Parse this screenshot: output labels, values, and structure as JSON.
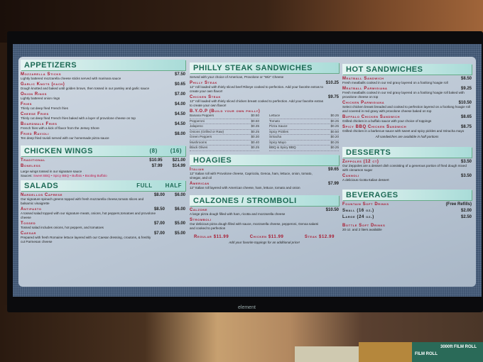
{
  "tv_brand": "element",
  "colors": {
    "header_text": "#1d6a55",
    "item_name": "#a8182e",
    "panel": "#c4cfdb"
  },
  "appetizers": {
    "title": "APPETIZERS",
    "items": [
      {
        "name": "Mozzarella Sticks",
        "desc": "Lightly battered mozzarella cheese sticks served with marinara sauce",
        "price": "$7.50"
      },
      {
        "name": "Garlic Knots (each)",
        "desc": "Dough knotted and baked until golden brown, then tossed in our parsley and garlic sauce",
        "price": "$0.65"
      },
      {
        "name": "Onion Rings",
        "desc": "Lightly battered onion rings",
        "price": "$7.00"
      },
      {
        "name": "Fries",
        "desc": "Thinly cut deep fried French fries",
        "price": "$4.00"
      },
      {
        "name": "Cheese Fries",
        "desc": "Thinly cut deep fried French fries baked with a layer of provolone cheese on top",
        "price": "$4.50"
      },
      {
        "name": "Boardwalk Fries",
        "desc": "French fries with a kick of flavor from the Jersey Shore",
        "price": "$4.50"
      },
      {
        "name": "Fried Ravioli",
        "desc": "Ten deep fried ravioli served with our homemade pizza sauce",
        "price": "$8.00"
      }
    ]
  },
  "wings": {
    "title": "CHICKEN WINGS",
    "cols": [
      "(8)",
      "(16)"
    ],
    "items": [
      {
        "name": "Traditional",
        "prices": [
          "$10.95",
          "$21.00"
        ]
      },
      {
        "name": "Boneless",
        "prices": [
          "$7.99",
          "$14.99"
        ]
      }
    ],
    "desc": "Large wings tossed in our signature sauce",
    "sauces_label": "Sauces:",
    "sauces": [
      "Sweet BBQ",
      "Spicy BBQ",
      "Buffalo",
      "Bootleg Buffalo"
    ]
  },
  "salads": {
    "title": "SALADS",
    "cols": [
      "FULL",
      "HALF"
    ],
    "items": [
      {
        "name": "Nardellos Caprese",
        "desc": "Our signature spinach greens topped with fresh mozzarella cheese,tomato slices and balsamic vinaigrette",
        "prices": [
          "$8.00",
          "$6.00"
        ]
      },
      {
        "name": "Antipasto",
        "desc": "A tossed salad topped with our signature meats, onions, hot peppers,tomatoes and provolone cheese",
        "prices": [
          "$8.50",
          "$6.00"
        ]
      },
      {
        "name": "Tossed",
        "desc": "Tossed salad includes onions, hot peppers, and tomatoes",
        "prices": [
          "$7.00",
          "$5.00"
        ]
      },
      {
        "name": "Caesar",
        "desc": "Prepared with fresh Romaine lettuce layered with our Caesar dressing, croutons, & freshly cut Parmesan cheese",
        "prices": [
          "$7.00",
          "$5.00"
        ]
      }
    ]
  },
  "philly": {
    "title": "PHILLY STEAK SANDWICHES",
    "intro": "Served with your choice of American, Provolone or \"Wiz\" Cheese",
    "items": [
      {
        "name": "Philly Steak",
        "desc": "12\" roll loaded with thinly sliced beef Ribeye cooked to perfection. Add your favorite extras to create your own flavor!",
        "price": "$10.25"
      },
      {
        "name": "Chicken Steak",
        "desc": "12\" roll loaded with thinly sliced chicken breast cooked to perfection. Add your favorite extras to create your own flavor!",
        "price": "$9.75"
      }
    ],
    "byop_title": "B.Y.O.P (Build your own philly)",
    "byop": [
      {
        "name": "Banana Peppers",
        "price": "$0.50"
      },
      {
        "name": "Lettuce",
        "price": "$0.25"
      },
      {
        "name": "Pepperoni",
        "price": "$0.50"
      },
      {
        "name": "Tomato",
        "price": "$0.25"
      },
      {
        "name": "Jalapeno",
        "price": "$0.35"
      },
      {
        "name": "Pizza Sauce",
        "price": "$0.25"
      },
      {
        "name": "Onions (Grilled or Raw)",
        "price": "$0.25"
      },
      {
        "name": "Spicy Pickles",
        "price": "$0.50"
      },
      {
        "name": "Green Peppers",
        "price": "$0.30"
      },
      {
        "name": "Sriracha",
        "price": "$0.20"
      },
      {
        "name": "Mushrooms",
        "price": "$0.40"
      },
      {
        "name": "Spicy Mayo",
        "price": "$0.25"
      },
      {
        "name": "Black Olives",
        "price": "$0.25"
      },
      {
        "name": "BBQ & Spicy BBQ",
        "price": "$0.25"
      }
    ]
  },
  "hoagies": {
    "title": "HOAGIES",
    "items": [
      {
        "name": "Italian",
        "desc": "12\" Italian roll with Provolone cheese, Capricola, Genoa, ham, lettuce, onion, tomato, vinegar, and oil",
        "price": "$9.65"
      },
      {
        "name": "American",
        "desc": "12\" Italian roll layered with American cheese, ham, lettuce, tomato and onion",
        "price": "$7.99"
      }
    ]
  },
  "calzones": {
    "title": "CALZONES / STROMBOLI",
    "items": [
      {
        "name": "Calzone",
        "desc": "A large pizza dough filled with ham, ricotta and mozzarella cheese",
        "price": "$10.50"
      },
      {
        "name": "Stromboli",
        "desc": "Our delicious pizza dough filled with sauce, mozzarella cheese, pepperoni, Genoa salami and cooked to perfection",
        "price": ""
      }
    ],
    "sizes": [
      "Regular $11.99",
      "Chicken $11.99",
      "Steak $12.99"
    ],
    "note": "Add your favorite toppings for an additional price!"
  },
  "hot": {
    "title": "HOT SANDWICHES",
    "items": [
      {
        "name": "Meatball Sandwich",
        "desc": "Fresh meatballs cooked in our red gravy layered on a footlong hoagie roll",
        "price": "$8.50"
      },
      {
        "name": "Meatball Parmigiana",
        "desc": "Fresh meatballs cooked in our red gravy layered on a footlong hoagie roll baked with provolone cheese on top",
        "price": "$9.25"
      },
      {
        "name": "Chicken Parmigiana",
        "desc": "Select chicken breast breaded and cooked to perfection layered on a footlong hoagie roll and covered in red gravy with provolone cheese baked on top",
        "price": "$10.50"
      },
      {
        "name": "Buffalo Chicken Sandwich",
        "desc": "Grilled chicken in a buffalo sauce with your choice of toppings",
        "price": "$8.65"
      },
      {
        "name": "Spicy BBQ Chicken Sandwich",
        "desc": "Grilled chicken in a barbecue sauce with sweet and spicy pickles and Sriracha mayo",
        "price": "$8.75"
      }
    ],
    "note": "All sandwiches are available in half portions"
  },
  "desserts": {
    "title": "DESSERTS",
    "items": [
      {
        "name": "Zeppoles (12 ct)",
        "desc": "Our Zeppoles are a dessert dish consisting of a generous portion of fried dough mixed with cinnamon sugar",
        "price": "$3.50"
      },
      {
        "name": "Cannoli",
        "desc": "A delicious ricotta Italian dessert",
        "price": "$3.50"
      }
    ]
  },
  "beverages": {
    "title": "BEVERAGES",
    "fountain": "Fountain Soft Drinks",
    "refills": "(Free Refills)",
    "sizes": [
      {
        "name": "Small (16 oz.)",
        "price": "$2.00"
      },
      {
        "name": "Large (24 oz.)",
        "price": "$2.50"
      }
    ],
    "bottle": "Bottle Soft Drinks",
    "bottle_desc": "20 oz. and 2 liters available"
  },
  "shelf_labels": [
    "FILM ROLL",
    "3000ft FILM ROLL"
  ]
}
